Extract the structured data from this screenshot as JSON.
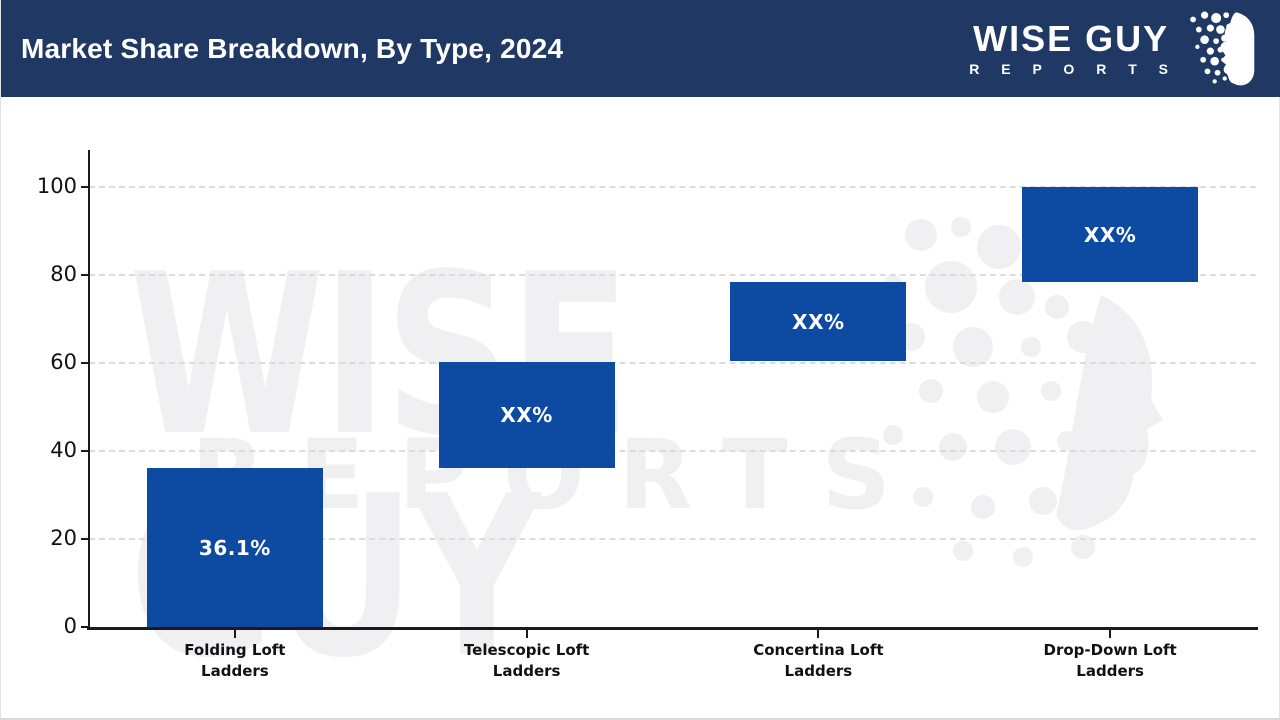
{
  "header": {
    "title": "Market Share Breakdown, By Type, 2024",
    "logo": {
      "name": "WISE GUY",
      "sub": "R E P O R T S"
    }
  },
  "watermark": {
    "big": "WISE GUY",
    "sub": "REPORTS"
  },
  "colors": {
    "header_bg": "#1f3864",
    "bar": "#0d4aa1",
    "bar_label": "#ffffff",
    "grid": "#dcdcdc",
    "axis": "#1a1a1a",
    "watermark": "#f0f0f2"
  },
  "chart_data": {
    "type": "bar",
    "subtype": "waterfall",
    "title": "Market Share Breakdown, By Type, 2024",
    "xlabel": "",
    "ylabel": "",
    "ylim": [
      0,
      108
    ],
    "yticks": [
      0,
      20,
      40,
      60,
      80,
      100
    ],
    "grid": "horizontal-dashed",
    "legend": "none",
    "categories": [
      "Folding Loft\nLadders",
      "Telescopic Loft\nLadders",
      "Concertina Loft\nLadders",
      "Drop-Down Loft\nLadders"
    ],
    "bars": [
      {
        "category": "Folding Loft Ladders",
        "start": 0,
        "end": 36.1,
        "label": "36.1%"
      },
      {
        "category": "Telescopic Loft Ladders",
        "start": 36.1,
        "end": 60.2,
        "label": "XX%"
      },
      {
        "category": "Concertina Loft Ladders",
        "start": 60.4,
        "end": 78.3,
        "label": "XX%"
      },
      {
        "category": "Drop-Down Loft Ladders",
        "start": 78.3,
        "end": 100,
        "label": "XX%"
      }
    ]
  }
}
